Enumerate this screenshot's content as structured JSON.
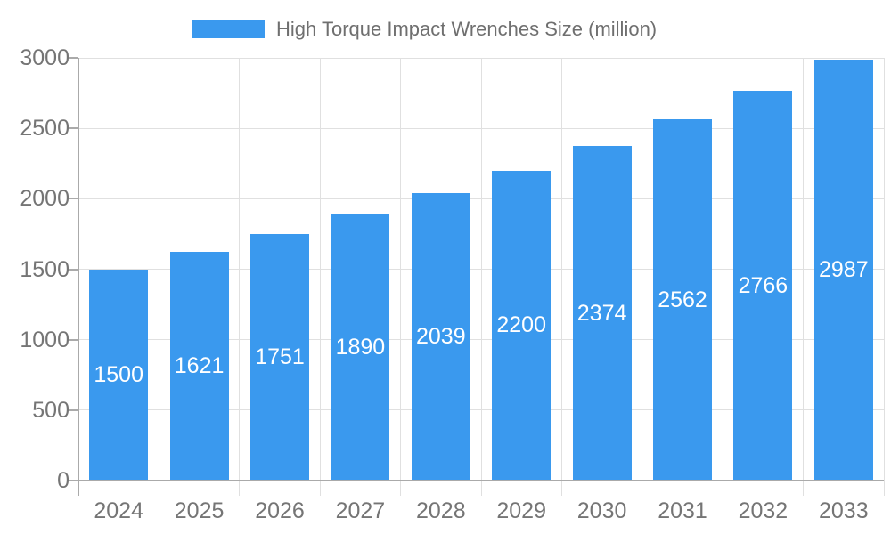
{
  "legend": {
    "label": "High Torque Impact Wrenches Size (million)",
    "swatch_color": "#3a99ee"
  },
  "chart_data": {
    "type": "bar",
    "title": "High Torque Impact Wrenches Size (million)",
    "categories": [
      "2024",
      "2025",
      "2026",
      "2027",
      "2028",
      "2029",
      "2030",
      "2031",
      "2032",
      "2033"
    ],
    "values": [
      1500,
      1621,
      1751,
      1890,
      2039,
      2200,
      2374,
      2562,
      2766,
      2987
    ],
    "xlabel": "",
    "ylabel": "",
    "ylim": [
      0,
      3000
    ],
    "yticks": [
      0,
      500,
      1000,
      1500,
      2000,
      2500,
      3000
    ],
    "grid": true,
    "legend_position": "top",
    "colors": {
      "bar": "#3a99ee",
      "value_label": "#ffffff",
      "axis_text": "#757575",
      "gridline": "#e0e0e0",
      "axis_line": "#aaaaaa"
    }
  }
}
